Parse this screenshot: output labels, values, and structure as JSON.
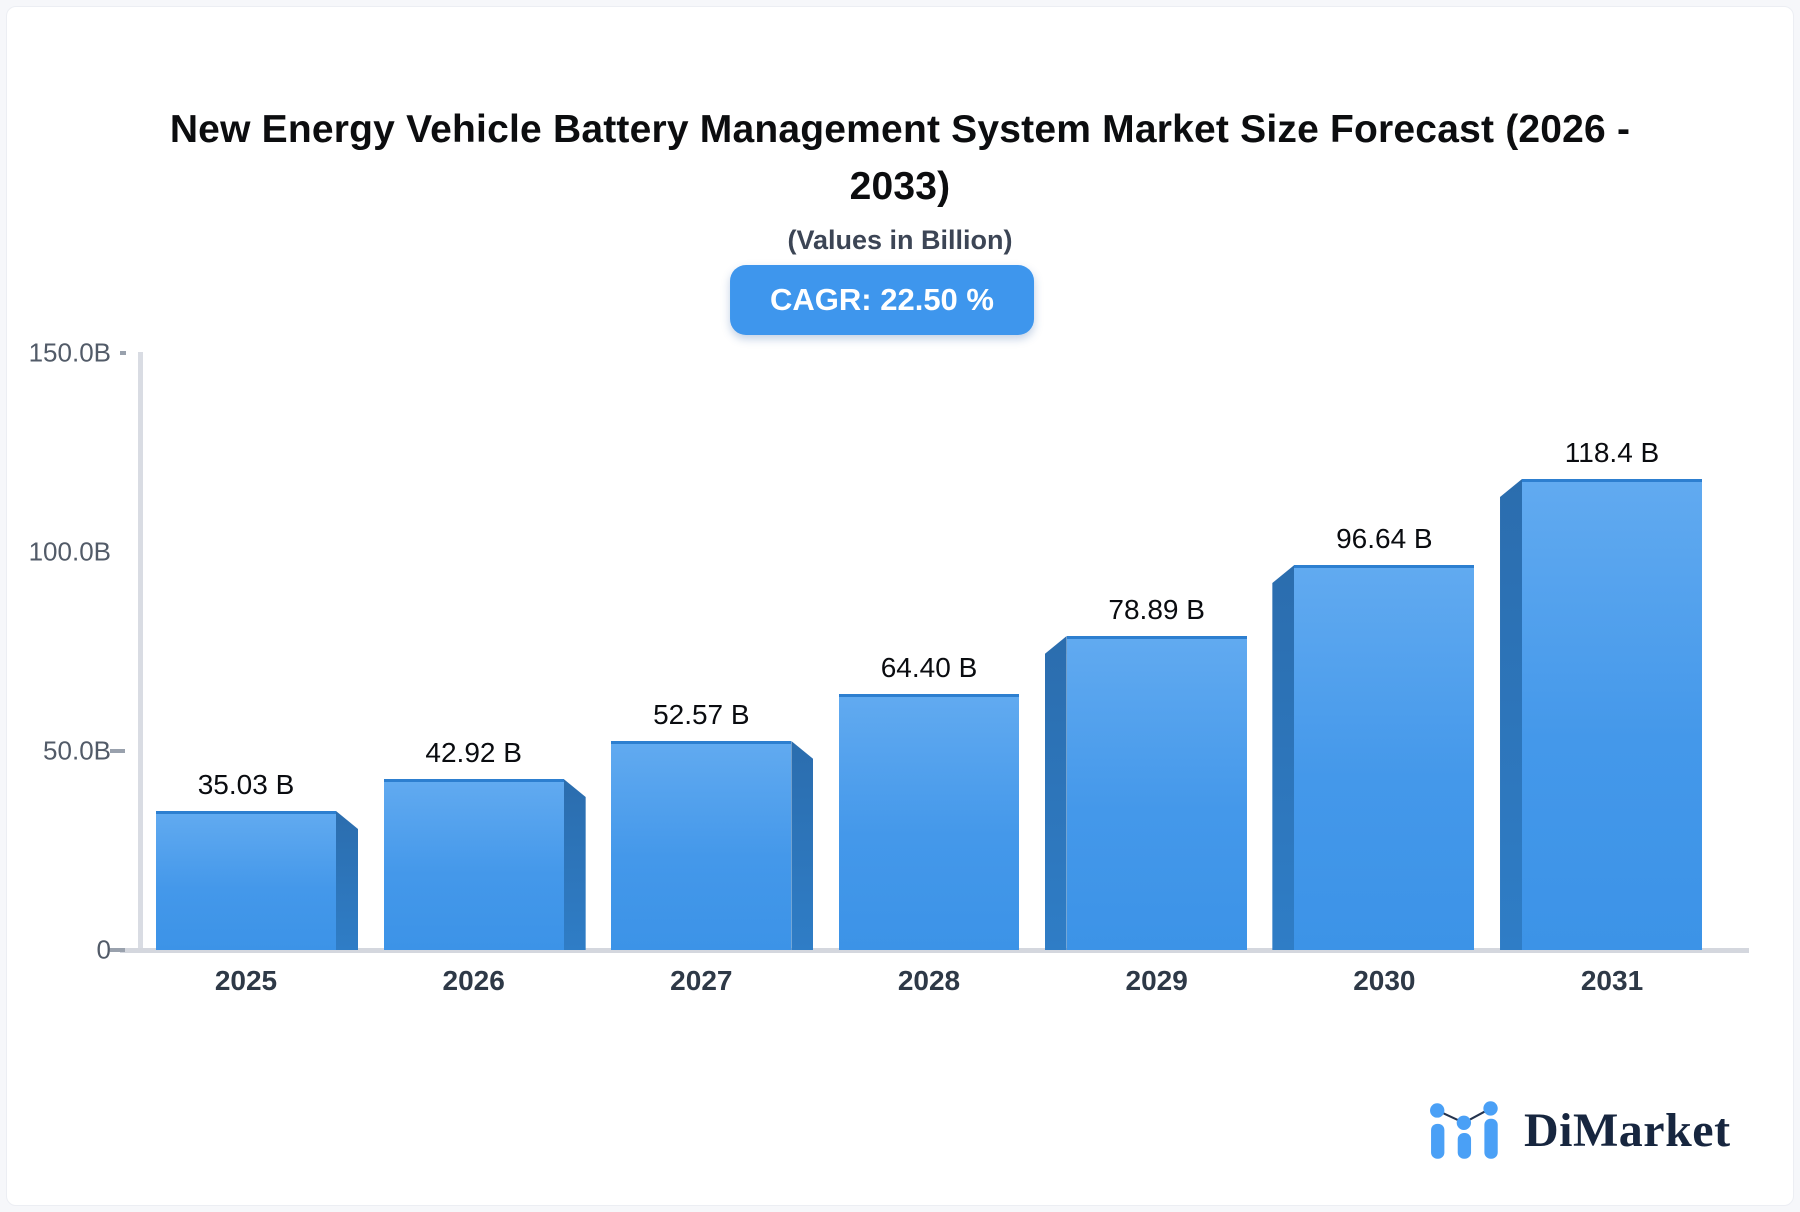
{
  "page": {
    "title_line1": "New Energy Vehicle Battery Management System Market Size Forecast (2026 -",
    "title_line2": "2033)",
    "subtitle": "(Values in Billion)",
    "cagr_badge_label": "CAGR: 22.50 %"
  },
  "brand": {
    "name": "DiMarket",
    "icon": "bar-chart-logo-icon",
    "text_color": "#17263f",
    "icon_color": "#4aa0f6"
  },
  "colors": {
    "badge_background": "#3e96ed",
    "bar_face_top": "#61aaf0",
    "bar_face_bottom": "#3c93e7",
    "bar_side": "#2d74b8",
    "bar_top_edge": "#2d7fd0",
    "axis_line": "#d6d9e0",
    "y_label_text": "#525b68",
    "x_label_text": "#2e3947",
    "value_label_text": "#0a0c10"
  },
  "chart_data": {
    "type": "bar",
    "title": "New Energy Vehicle Battery Management System Market Size Forecast (2026 - 2033)",
    "subtitle": "(Values in Billion)",
    "annotation": "CAGR: 22.50 %",
    "categories": [
      "2025",
      "2026",
      "2027",
      "2028",
      "2029",
      "2030",
      "2031"
    ],
    "values": [
      35.03,
      42.92,
      52.57,
      64.4,
      78.89,
      96.64,
      118.4
    ],
    "value_labels": [
      "35.03 B",
      "42.92 B",
      "52.57 B",
      "64.40 B",
      "78.89 B",
      "96.64 B",
      "118.4 B"
    ],
    "xlabel": "",
    "ylabel": "",
    "ylim": [
      0,
      150
    ],
    "yticks": [
      {
        "label": "150.0B",
        "value": 150,
        "tick_mark": "dot"
      },
      {
        "label": "100.0B",
        "value": 100,
        "tick_mark": "none"
      },
      {
        "label": "50.0B",
        "value": 50,
        "tick_mark": "dash"
      },
      {
        "label": "0",
        "value": 0,
        "tick_mark": "dash"
      }
    ],
    "grid": false,
    "legend": false,
    "style": "3d-bars, single blue series"
  }
}
